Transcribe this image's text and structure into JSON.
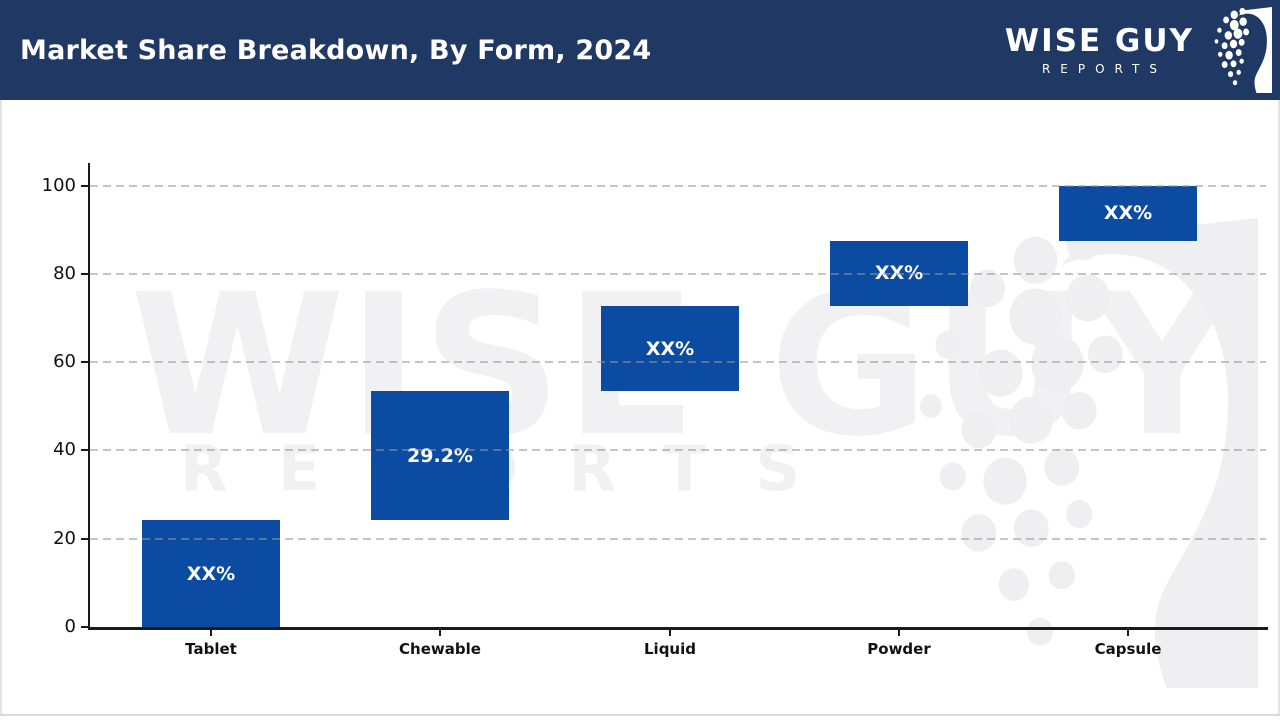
{
  "header": {
    "title": "Market Share Breakdown, By Form, 2024",
    "logo": {
      "line1": "WISE GUY",
      "line2": "REPORTS"
    }
  },
  "watermark": {
    "line1": "WISE GUY",
    "line2": "REPORTS"
  },
  "chart_data": {
    "type": "bar",
    "subtype": "floating-segment-waterfall",
    "title": "Market Share Breakdown, By Form, 2024",
    "categories": [
      "Tablet",
      "Chewable",
      "Liquid",
      "Powder",
      "Capsule"
    ],
    "segments": [
      {
        "category": "Tablet",
        "start": 0,
        "end": 24.2,
        "value_label": "XX%"
      },
      {
        "category": "Chewable",
        "start": 24.2,
        "end": 53.4,
        "value_label": "29.2%"
      },
      {
        "category": "Liquid",
        "start": 53.4,
        "end": 72.7,
        "value_label": "XX%"
      },
      {
        "category": "Powder",
        "start": 72.7,
        "end": 87.5,
        "value_label": "XX%"
      },
      {
        "category": "Capsule",
        "start": 87.5,
        "end": 100,
        "value_label": "XX%"
      }
    ],
    "ylim": [
      0,
      100
    ],
    "yticks": [
      0,
      20,
      40,
      60,
      80,
      100
    ],
    "grid": "horizontal-dashed-above-bars",
    "legend": "none",
    "bar_color": "#0b4ba1",
    "bar_label_color": "#ffffff",
    "axis_color": "#1a1a1a",
    "header_color": "#1f3864"
  }
}
